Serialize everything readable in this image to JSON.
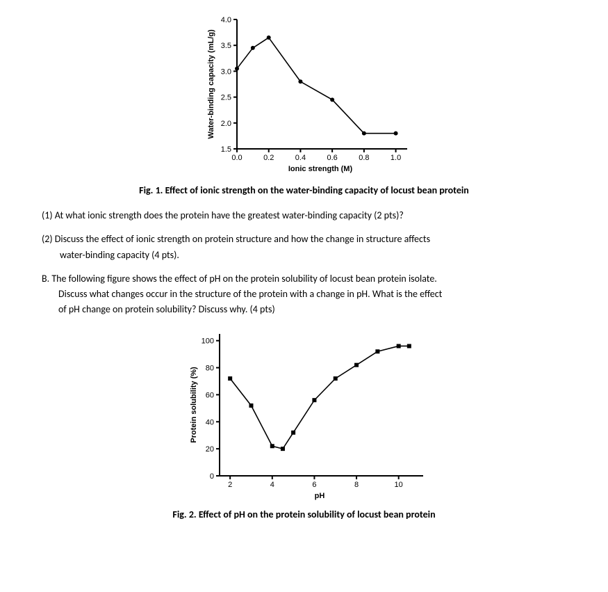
{
  "fig1": {
    "type": "line",
    "y_label": "Water-binding capacity (mL/g)",
    "x_label": "Ionic strength (M)",
    "y_ticks": [
      1.5,
      2.0,
      2.5,
      3.0,
      3.5,
      4.0
    ],
    "x_ticks": [
      0.0,
      0.2,
      0.4,
      0.6,
      0.8,
      1.0
    ],
    "xlim": [
      0.0,
      1.05
    ],
    "ylim": [
      1.5,
      4.0
    ],
    "points_x": [
      0.0,
      0.1,
      0.2,
      0.4,
      0.6,
      0.8,
      1.0
    ],
    "points_y": [
      3.05,
      3.45,
      3.65,
      2.8,
      2.45,
      1.8,
      1.8
    ],
    "marker_radius": 3,
    "line_color": "#000000",
    "marker_color": "#000000",
    "bg_color": "#ffffff",
    "label_fontsize": 11,
    "axis_title_fontsize": 11,
    "caption": "Fig. 1. Effect of ionic strength on the water-binding capacity of locust bean protein"
  },
  "questions": {
    "q1": "(1) At what ionic strength does the protein have the greatest water-binding capacity (2 pts)?",
    "q2a": "(2) Discuss the effect of ionic strength on protein structure and how the change in structure affects",
    "q2b": "water-binding capacity (4 pts).",
    "b1": "B. The following figure shows the effect of pH on the protein solubility of locust bean protein isolate.",
    "b2": "Discuss what changes occur in the structure of the protein with a change in pH. What is the effect",
    "b3": "of pH change on protein solubility? Discuss why. (4 pts)"
  },
  "fig2": {
    "type": "line",
    "y_label": "Protein solubility (%)",
    "x_label": "pH",
    "y_ticks": [
      0,
      20,
      40,
      60,
      80,
      100
    ],
    "x_ticks": [
      2,
      4,
      6,
      8,
      10
    ],
    "xlim": [
      1.5,
      11.0
    ],
    "ylim": [
      0,
      105
    ],
    "points_x": [
      2.0,
      3.0,
      4.0,
      4.5,
      5.0,
      6.0,
      7.0,
      8.0,
      9.0,
      10.0,
      10.5
    ],
    "points_y": [
      72,
      52,
      22,
      20,
      32,
      56,
      72,
      82,
      92,
      96,
      96
    ],
    "marker_style": "square",
    "marker_size": 3,
    "line_color": "#000000",
    "marker_color": "#000000",
    "bg_color": "#ffffff",
    "label_fontsize": 11,
    "axis_title_fontsize": 11,
    "caption": "Fig. 2. Effect of pH on the protein solubility of locust bean protein"
  }
}
